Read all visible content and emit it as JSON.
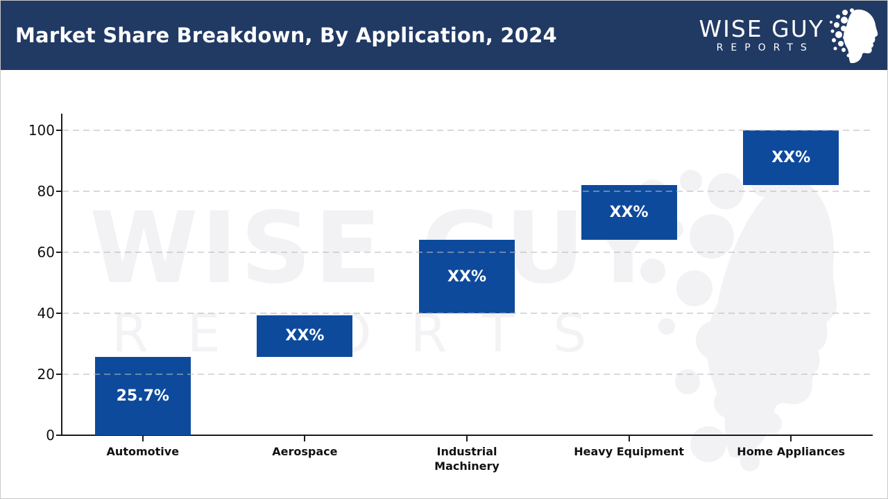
{
  "header": {
    "title": "Market Share Breakdown, By Application, 2024",
    "logo_line1": "WISE GUY",
    "logo_line2": "REPORTS"
  },
  "watermark": {
    "line1": "WISE GUY",
    "line2": "REPORTS"
  },
  "colors": {
    "header_bg": "#213a64",
    "bar": "#0e4a9c",
    "bar_label": "#ffffff",
    "axis": "#1a1a1a",
    "gridline": "#d9d9d9"
  },
  "chart_data": {
    "type": "bar",
    "subtype": "waterfall",
    "title": "Market Share Breakdown, By Application, 2024",
    "xlabel": "",
    "ylabel": "",
    "ylim": [
      0,
      105
    ],
    "yticks": [
      0,
      20,
      40,
      60,
      80,
      100
    ],
    "grid": "horizontal-dashed-on-top",
    "legend": "none",
    "bar_color": "#0e4a9c",
    "categories": [
      "Automotive",
      "Aerospace",
      "Industrial Machinery",
      "Heavy Equipment",
      "Home Appliances"
    ],
    "bars": [
      {
        "category": "Automotive",
        "category_lines": [
          "Automotive"
        ],
        "start": 0,
        "end": 25.7,
        "label": "25.7%"
      },
      {
        "category": "Aerospace",
        "category_lines": [
          "Aerospace"
        ],
        "start": 25.7,
        "end": 39.4,
        "label": "XX%"
      },
      {
        "category": "Industrial Machinery",
        "category_lines": [
          "Industrial",
          "Machinery"
        ],
        "start": 40,
        "end": 64,
        "label": "XX%"
      },
      {
        "category": "Heavy Equipment",
        "category_lines": [
          "Heavy Equipment"
        ],
        "start": 64,
        "end": 82,
        "label": "XX%"
      },
      {
        "category": "Home Appliances",
        "category_lines": [
          "Home Appliances"
        ],
        "start": 82,
        "end": 100,
        "label": "XX%"
      }
    ]
  }
}
